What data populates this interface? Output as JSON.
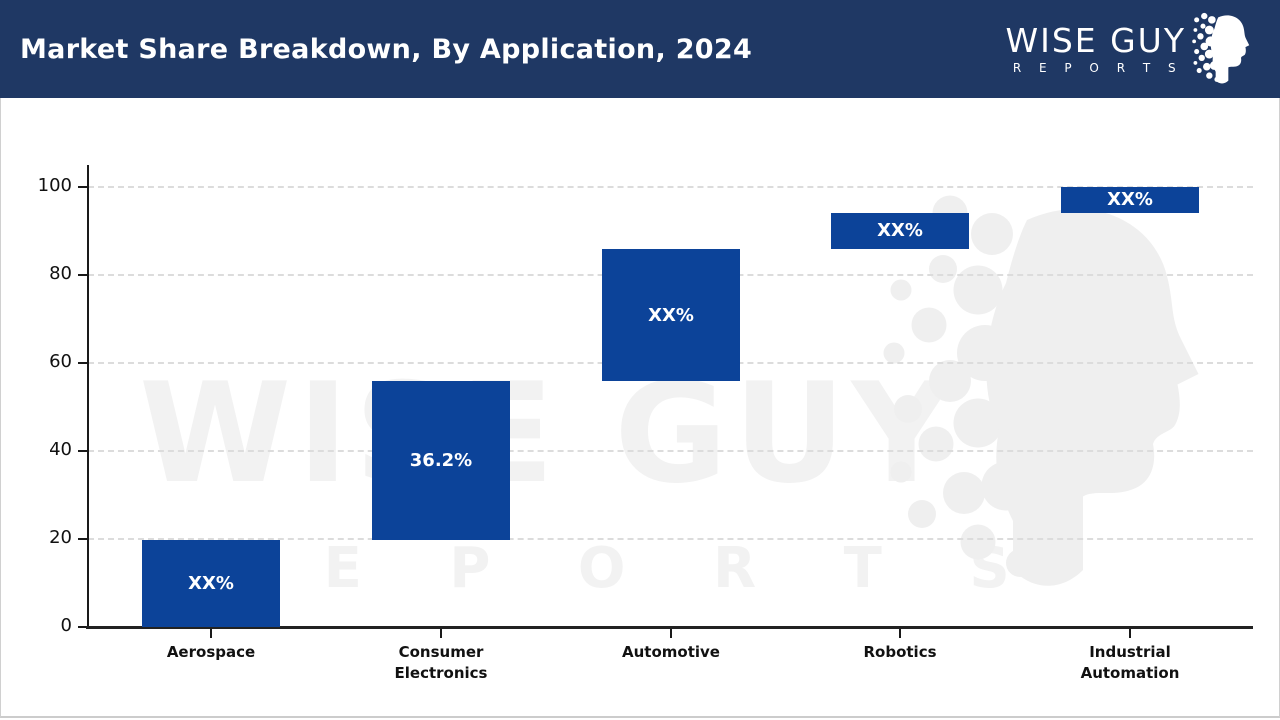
{
  "header": {
    "title": "Market Share Breakdown, By Application, 2024",
    "logo": {
      "wordmark": "WISE GUY",
      "subtext": "R E P O R T S"
    }
  },
  "watermark": {
    "line1": "WISE GUY",
    "line2": "R E P O R T S"
  },
  "chart_data": {
    "type": "bar",
    "subtype": "floating-waterfall",
    "title": "Market Share Breakdown, By Application, 2024",
    "xlabel": "",
    "ylabel": "",
    "ylim": [
      0,
      100
    ],
    "yticks": [
      0,
      20,
      40,
      60,
      80,
      100
    ],
    "grid": "horizontal dashed gridlines at each y tick",
    "legend": "none",
    "categories": [
      "Aerospace",
      "Consumer Electronics",
      "Automotive",
      "Robotics",
      "Industrial Automation"
    ],
    "segments": [
      {
        "category": "Aerospace",
        "start": 0,
        "end": 19.8,
        "label": "XX%"
      },
      {
        "category": "Consumer Electronics",
        "start": 19.8,
        "end": 56.0,
        "label": "36.2%"
      },
      {
        "category": "Automotive",
        "start": 56.0,
        "end": 85.8,
        "label": "XX%"
      },
      {
        "category": "Robotics",
        "start": 85.8,
        "end": 94.2,
        "label": "XX%"
      },
      {
        "category": "Industrial Automation",
        "start": 94.2,
        "end": 100,
        "label": "XX%"
      }
    ],
    "bar_color": "#0c4399",
    "bar_label_color": "#ffffff",
    "axis_color": "#1a1a1a",
    "gridline_color": "#dcdcdc"
  },
  "colors": {
    "header_bg": "#1f3864",
    "card_border": "#d0d0d0",
    "watermark": "#f2f2f2"
  }
}
